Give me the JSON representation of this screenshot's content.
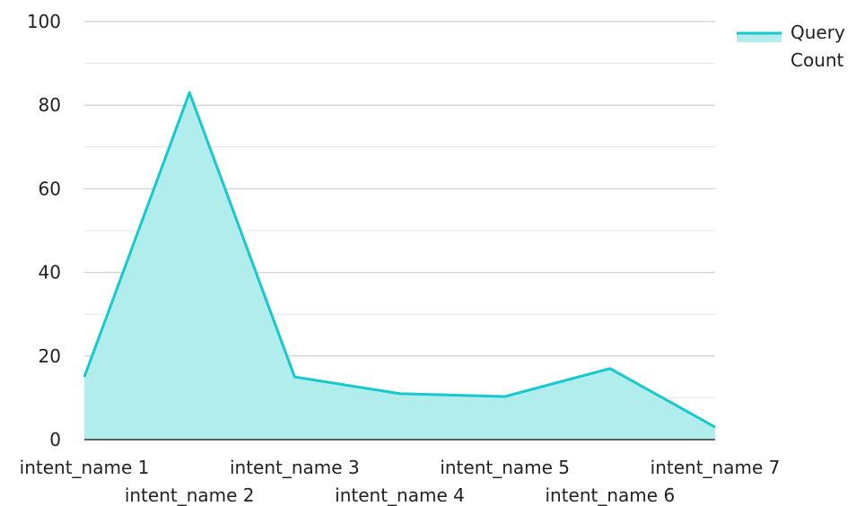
{
  "chart_data": {
    "type": "area",
    "categories": [
      "intent_name 1",
      "intent_name 2",
      "intent_name 3",
      "intent_name 4",
      "intent_name 5",
      "intent_name 6",
      "intent_name 7"
    ],
    "series": [
      {
        "name": "Query Count",
        "values": [
          15,
          83,
          15,
          11,
          10.3,
          17,
          3
        ]
      }
    ],
    "ylim": [
      0,
      100
    ],
    "yticks": [
      0,
      20,
      40,
      60,
      80,
      100
    ],
    "grid": true,
    "legend_position": "top-right",
    "line_color": "#17c9cc",
    "fill_color": "#b2eded"
  }
}
